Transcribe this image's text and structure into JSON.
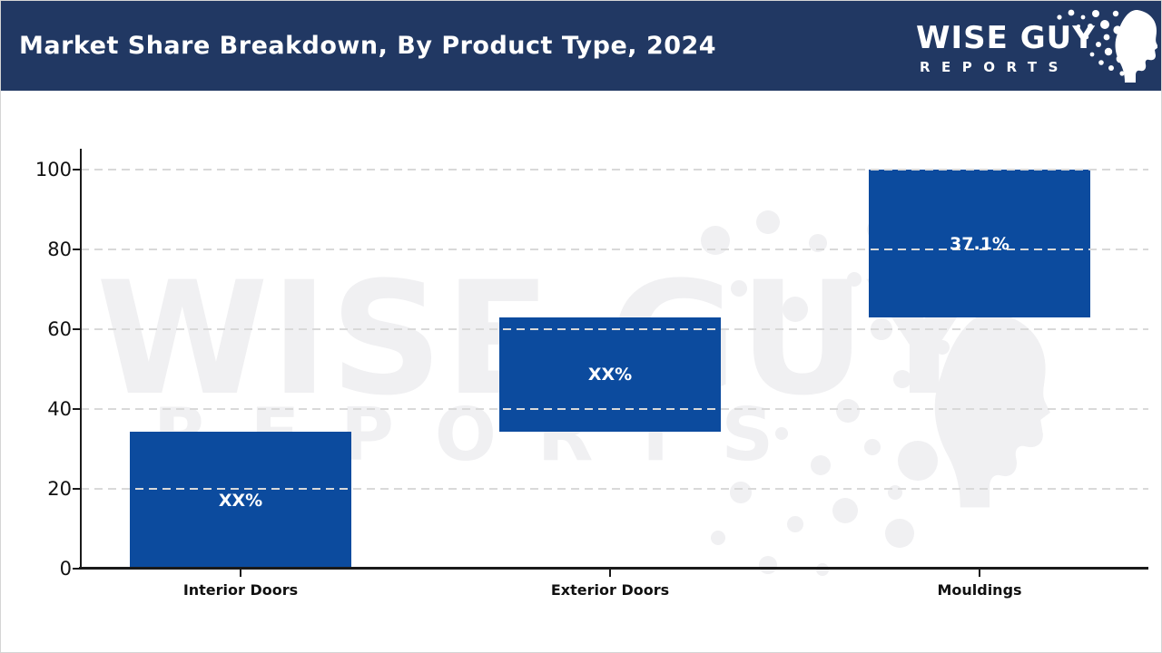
{
  "header": {
    "title": "Market Share Breakdown, By Product Type, 2024",
    "logo": {
      "line1": "WISE GUY",
      "line2": "REPORTS"
    }
  },
  "watermark": {
    "line1": "WISE GUY",
    "line2": "REPORTS"
  },
  "colors": {
    "header_bg": "#213863",
    "bar": "#0c4b9e",
    "gridline": "#d9d9d9",
    "axis": "#1a1a1a",
    "watermark": "#f0f0f2",
    "bar_label_text": "#ffffff"
  },
  "chart_data": {
    "type": "bar",
    "subtype": "waterfall",
    "title": "Market Share Breakdown, By Product Type, 2024",
    "xlabel": "",
    "ylabel": "",
    "categories": [
      "Interior Doors",
      "Exterior Doors",
      "Mouldings"
    ],
    "segments": [
      {
        "category": "Interior Doors",
        "start": 0,
        "end": 34.3,
        "value": 34.3,
        "label": "XX%"
      },
      {
        "category": "Exterior Doors",
        "start": 34.3,
        "end": 62.9,
        "value": 28.6,
        "label": "XX%"
      },
      {
        "category": "Mouldings",
        "start": 62.9,
        "end": 100,
        "value": 37.1,
        "label": "37.1%"
      }
    ],
    "ylim": [
      0,
      100
    ],
    "yticks": [
      0,
      20,
      40,
      60,
      80,
      100
    ],
    "grid": "horizontal-dashed",
    "legend": "none"
  }
}
